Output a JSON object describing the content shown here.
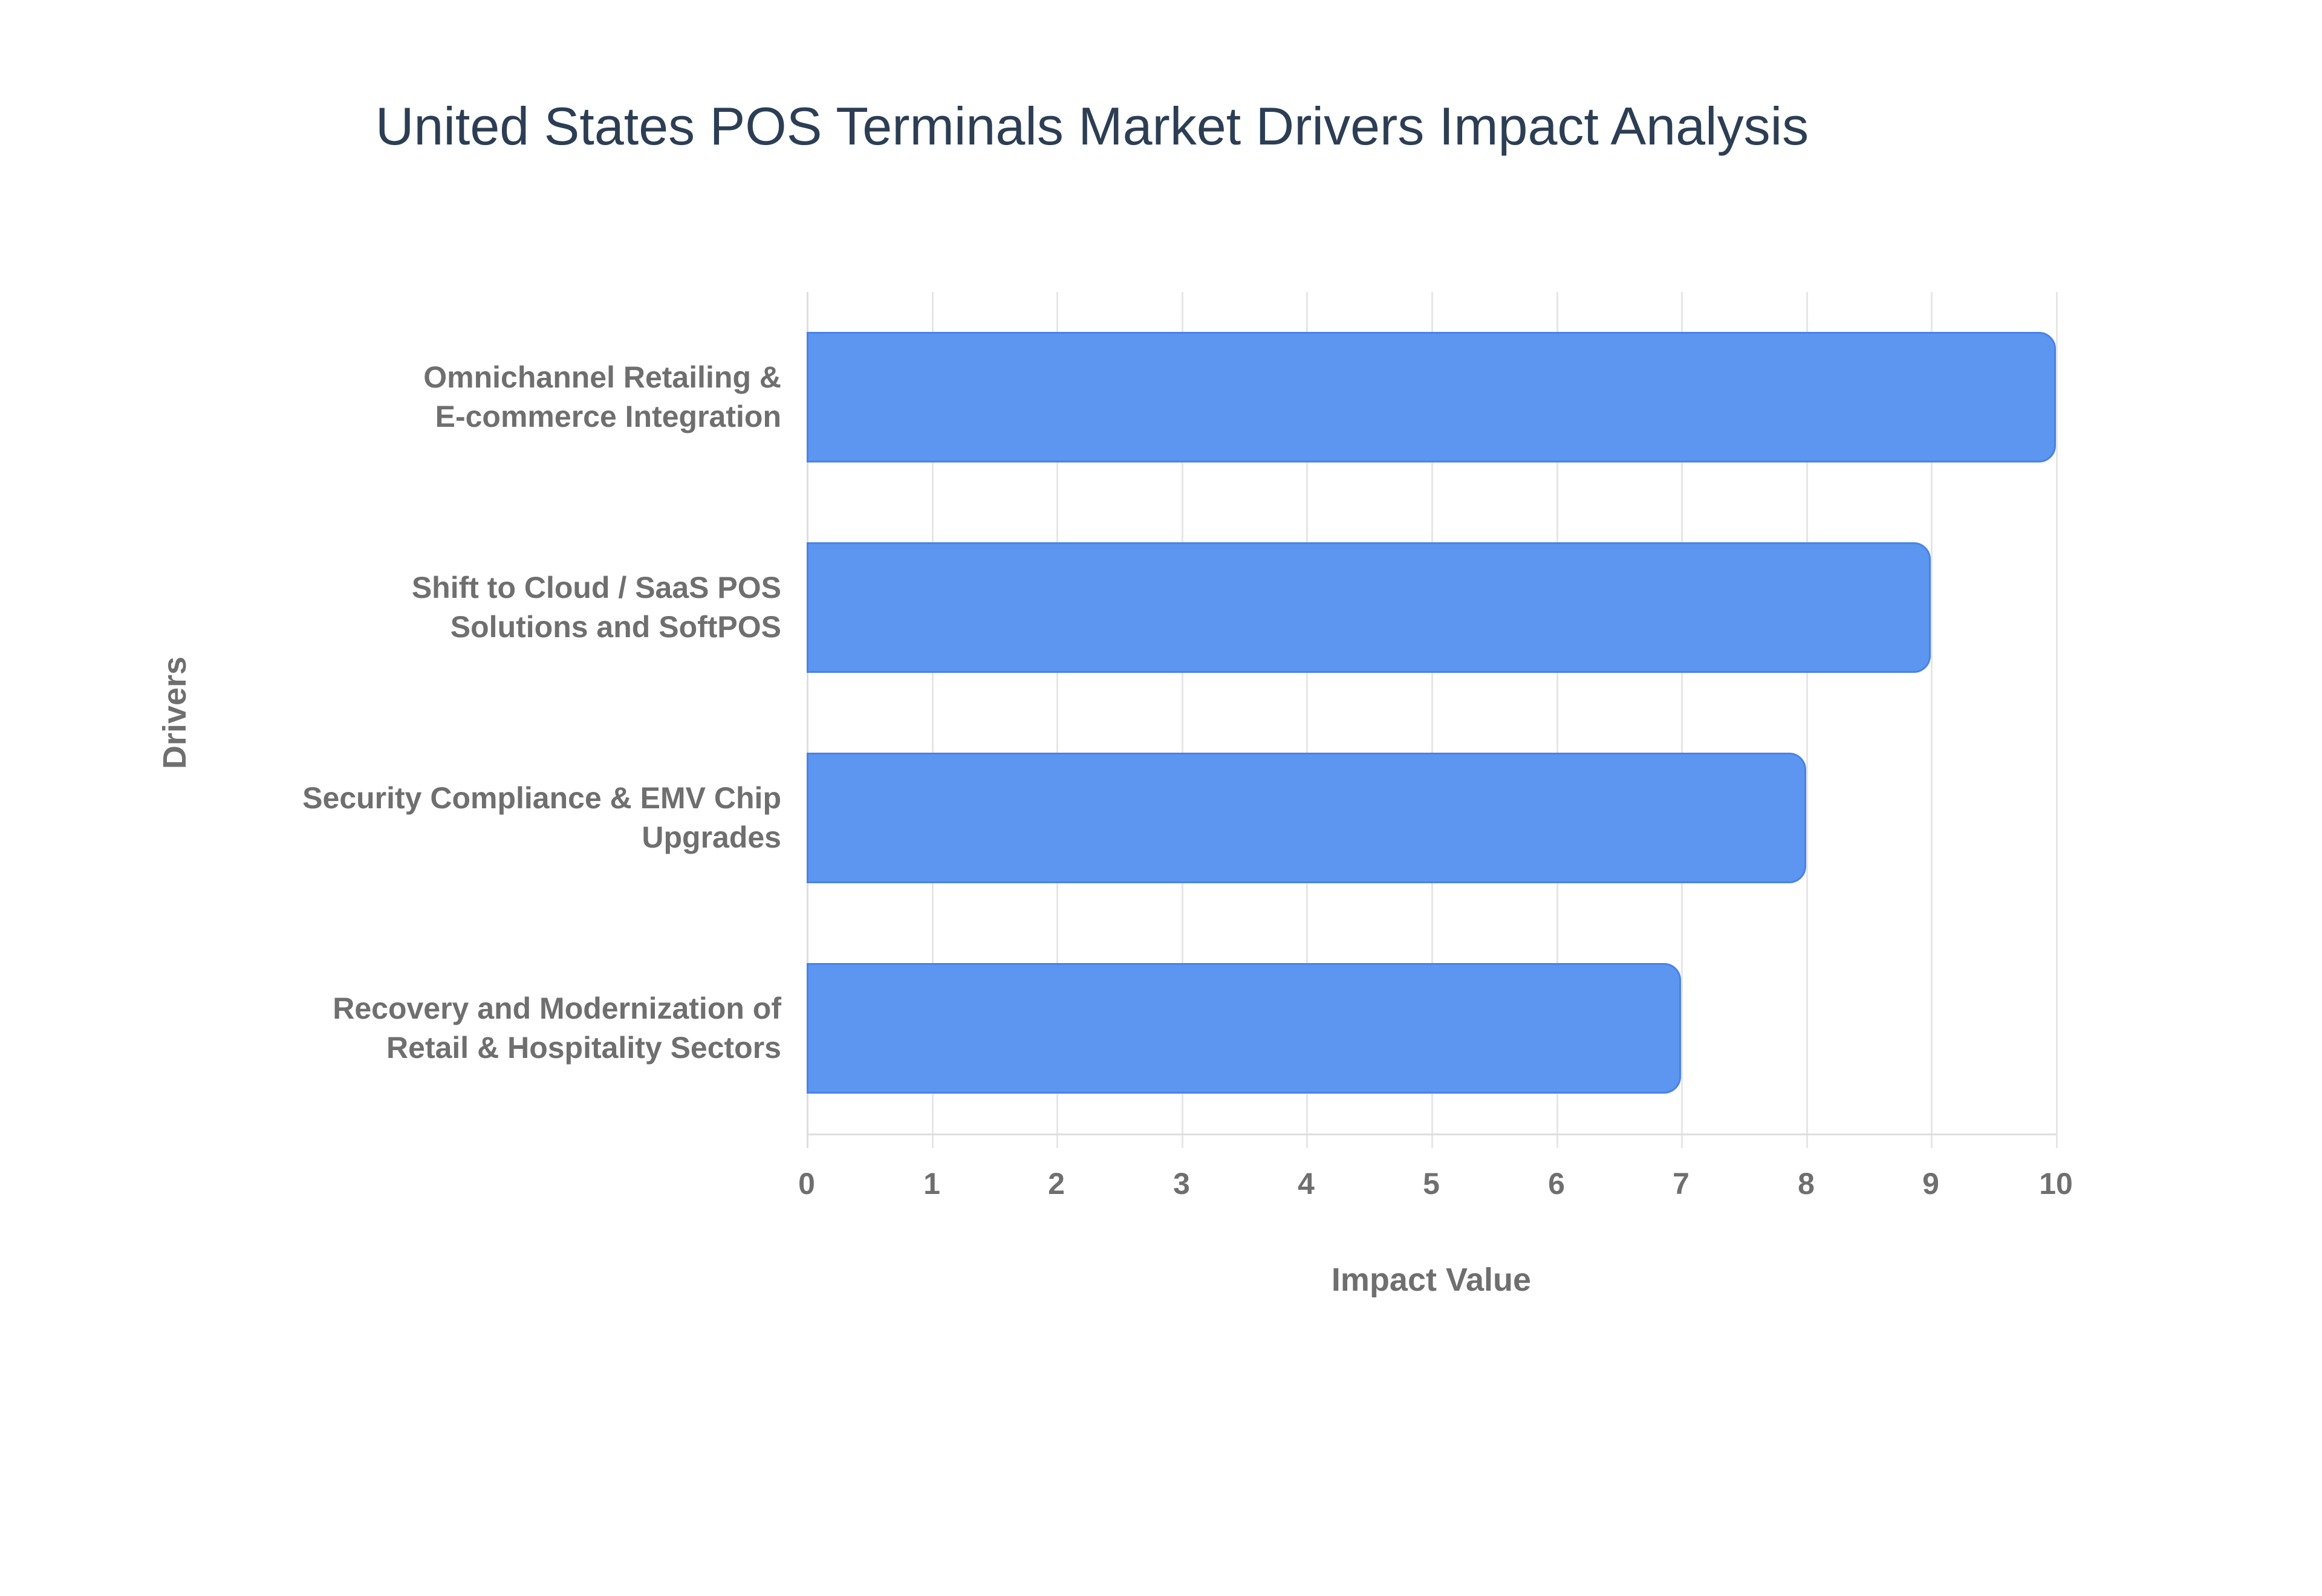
{
  "chart_data": {
    "type": "bar",
    "orientation": "horizontal",
    "title": "United States POS Terminals Market Drivers Impact Analysis",
    "xlabel": "Impact Value",
    "ylabel": "Drivers",
    "categories": [
      "Omnichannel Retailing & E-commerce Integration",
      "Shift to Cloud / SaaS POS Solutions and SoftPOS",
      "Security Compliance & EMV Chip Upgrades",
      "Recovery and Modernization of Retail & Hospitality Sectors"
    ],
    "category_label_lines": [
      [
        "Omnichannel Retailing &",
        "E-commerce Integration"
      ],
      [
        "Shift to Cloud / SaaS POS",
        "Solutions and SoftPOS"
      ],
      [
        "Security Compliance & EMV Chip",
        "Upgrades"
      ],
      [
        "Recovery and Modernization of",
        "Retail & Hospitality Sectors"
      ]
    ],
    "values": [
      10,
      9,
      8,
      7
    ],
    "xlim": [
      0,
      10
    ],
    "xticks": [
      "0",
      "1",
      "2",
      "3",
      "4",
      "5",
      "6",
      "7",
      "8",
      "9",
      "10"
    ],
    "grid": "vertical-only",
    "legend": "none",
    "colors": {
      "bar_fill": "#5C96F0",
      "bar_border": "#4A82E8",
      "gridline": "#E6E6E6",
      "axis_line": "#DEDEDE",
      "axis_text": "#6F6F6F",
      "title_text": "#2C3E54",
      "background": "#FFFFFF"
    }
  }
}
